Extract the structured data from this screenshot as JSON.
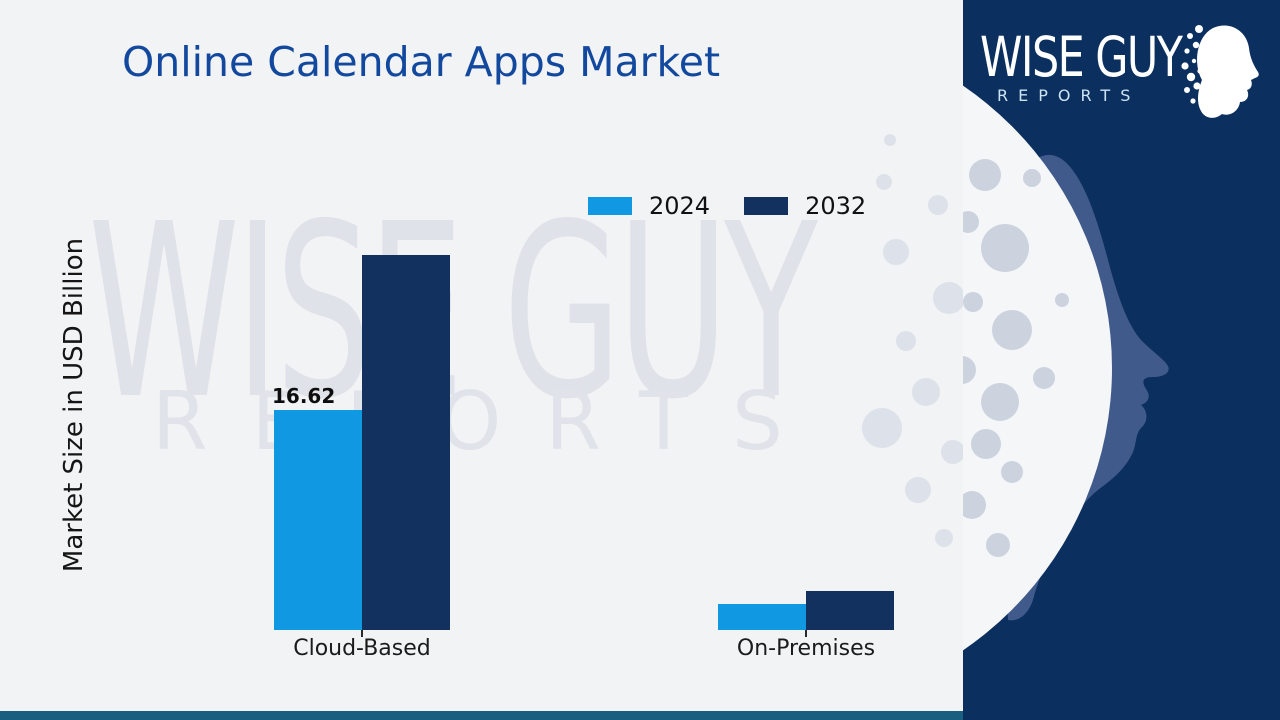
{
  "title": "Online Calendar Apps Market",
  "y_axis_label": "Market Size in USD Billion",
  "watermark": {
    "line1": "WISE GUY",
    "line2": "REPORTS"
  },
  "brand": {
    "name": "WISE GUY",
    "subtitle": "REPORTS",
    "logo_icon": "head-profile-dots-icon"
  },
  "colors": {
    "series_2024": "#1198e2",
    "series_2032": "#12315f",
    "title": "#12499e",
    "panel": "#0b2f5f",
    "bottom_strip": "#1a5f80",
    "face_silhouette": "#3f5a8b",
    "background": "#f2f3f4"
  },
  "chart_data": {
    "type": "bar",
    "categories": [
      "Cloud-Based",
      "On-Premises"
    ],
    "series": [
      {
        "name": "2024",
        "color": "#1198e2",
        "values": [
          16.62,
          2.0
        ]
      },
      {
        "name": "2032",
        "color": "#12315f",
        "values": [
          28.3,
          2.95
        ]
      }
    ],
    "data_labels": [
      {
        "series": "2024",
        "category": "Cloud-Based",
        "text": "16.62"
      }
    ],
    "title": "Online Calendar Apps Market",
    "xlabel": "",
    "ylabel": "Market Size in USD Billion",
    "ylim": [
      0,
      30
    ],
    "grid": false,
    "legend_position": "top-right"
  }
}
